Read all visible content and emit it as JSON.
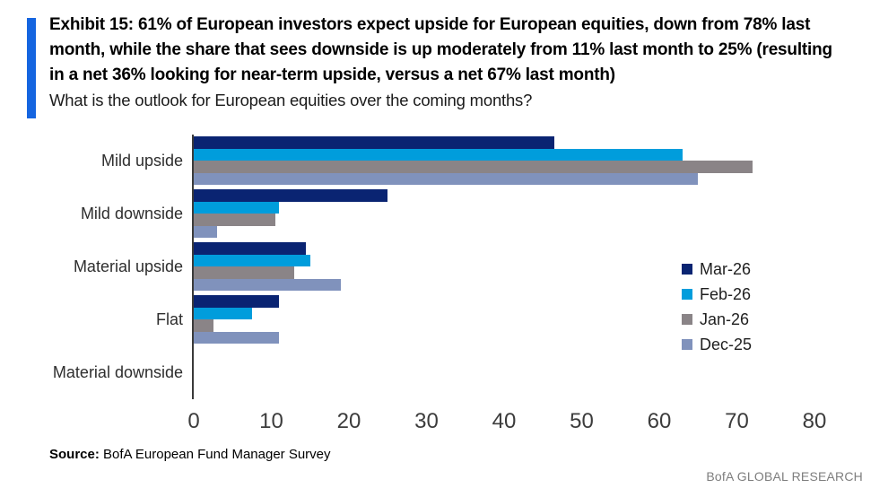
{
  "header": {
    "accent_color": "#1565E0",
    "title_lines": [
      "Exhibit 15: 61% of European investors expect upside for European equities, down from 78% last",
      "month, while the share that sees downside is up moderately from 11% last month to 25% (resulting",
      "in a net 36% looking for near-term upside, versus a net 67% last month)"
    ],
    "subtitle": "What is the outlook for European equities over the coming months?"
  },
  "chart_data": {
    "type": "bar",
    "orientation": "horizontal",
    "title": "What is the outlook for European equities over the coming months?",
    "categories": [
      "Mild upside",
      "Mild downside",
      "Material upside",
      "Flat",
      "Material downside"
    ],
    "series": [
      {
        "name": "Mar-26",
        "color": "#0A2472",
        "values": [
          46.5,
          25,
          14.5,
          11,
          0
        ]
      },
      {
        "name": "Feb-26",
        "color": "#009DDC",
        "values": [
          63,
          11,
          15,
          7.5,
          0
        ]
      },
      {
        "name": "Jan-26",
        "color": "#8A8487",
        "values": [
          72,
          10.5,
          13,
          2.5,
          0
        ]
      },
      {
        "name": "Dec-25",
        "color": "#8092BC",
        "values": [
          65,
          3,
          19,
          11,
          0
        ]
      }
    ],
    "xlabel": "",
    "ylabel": "",
    "xlim": [
      0,
      80
    ],
    "xticks": [
      0,
      10,
      20,
      30,
      40,
      50,
      60,
      70,
      80
    ],
    "grid": false,
    "legend_position": "right",
    "axis_color": "#3a3a3a"
  },
  "footer": {
    "source_label": "Source:",
    "source_text": "BofA European Fund Manager Survey",
    "brand": "BofA GLOBAL RESEARCH"
  }
}
